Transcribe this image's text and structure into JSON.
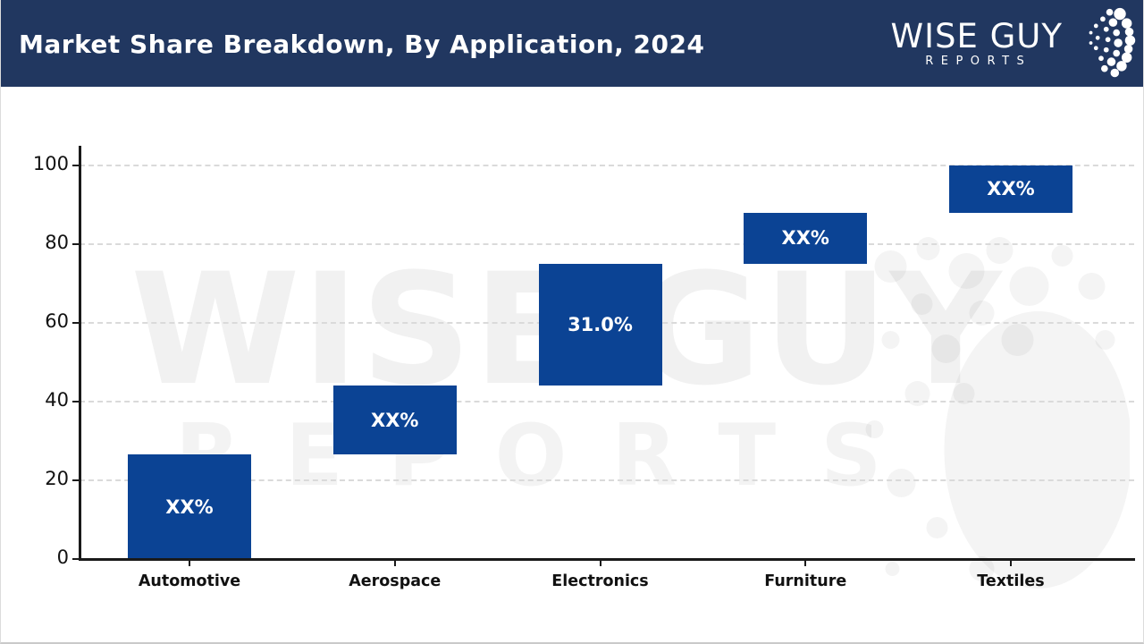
{
  "header": {
    "title": "Market Share Breakdown, By Application, 2024",
    "bg_color": "#213760",
    "logo": {
      "line1": "WISE GUY",
      "line2": "REPORTS"
    }
  },
  "watermark": {
    "line1": "WISE GUY",
    "line2": "REPORTS"
  },
  "chart_data": {
    "type": "bar",
    "subtype": "floating-waterfall",
    "title": "Market Share Breakdown, By Application, 2024",
    "categories": [
      "Automotive",
      "Aerospace",
      "Electronics",
      "Furniture",
      "Textiles"
    ],
    "segments": [
      {
        "category": "Automotive",
        "start": 0,
        "end": 26.5,
        "label": "XX%"
      },
      {
        "category": "Aerospace",
        "start": 26.5,
        "end": 44.0,
        "label": "XX%"
      },
      {
        "category": "Electronics",
        "start": 44.0,
        "end": 75.0,
        "label": "31.0%"
      },
      {
        "category": "Furniture",
        "start": 75.0,
        "end": 88.0,
        "label": "XX%"
      },
      {
        "category": "Textiles",
        "start": 88.0,
        "end": 100.0,
        "label": "XX%"
      }
    ],
    "xlabel": "",
    "ylabel": "",
    "ylim": [
      0,
      100
    ],
    "yticks": [
      0,
      20,
      40,
      60,
      80,
      100
    ],
    "grid": "horizontal dashed",
    "legend": "none",
    "bar_color": "#0b4394",
    "bar_label_color": "#ffffff"
  }
}
